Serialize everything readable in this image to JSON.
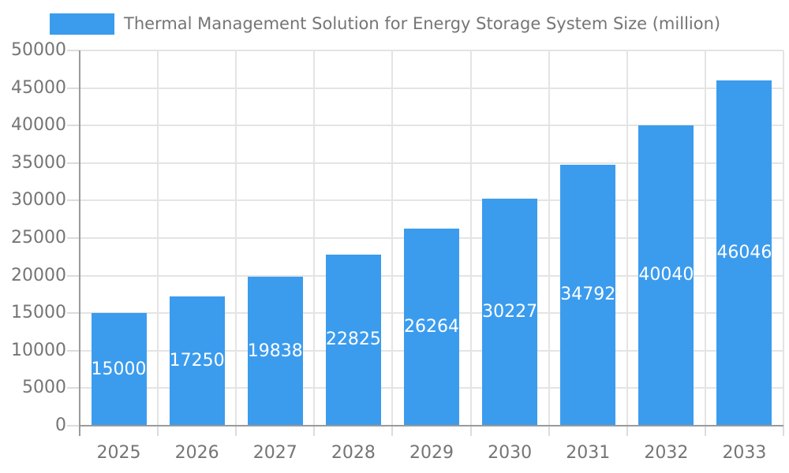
{
  "legend": {
    "label": "Thermal Management Solution for Energy Storage System Size (million)"
  },
  "colors": {
    "bar": "#3B9CEE",
    "grid": "#E4E4E4",
    "tick": "#DCDCDC",
    "spine": "#9A9A9A",
    "axis_label": "#757575",
    "value_label": "#FFFFFF",
    "background": "#FFFFFF"
  },
  "chart_data": {
    "type": "bar",
    "title": "Thermal Management Solution for Energy Storage System Size (million)",
    "categories": [
      "2025",
      "2026",
      "2027",
      "2028",
      "2029",
      "2030",
      "2031",
      "2032",
      "2033"
    ],
    "values": [
      15000,
      17250,
      19838,
      22825,
      26264,
      30227,
      34792,
      40040,
      46046
    ],
    "series": [
      {
        "name": "Thermal Management Solution for Energy Storage System Size (million)",
        "values": [
          15000,
          17250,
          19838,
          22825,
          26264,
          30227,
          34792,
          40040,
          46046
        ]
      }
    ],
    "xlabel": "",
    "ylabel": "",
    "ylim": [
      0,
      50000
    ],
    "yticks": [
      0,
      5000,
      10000,
      15000,
      20000,
      25000,
      30000,
      35000,
      40000,
      45000,
      50000
    ],
    "grid": true,
    "legend_position": "top-left",
    "value_labels": "inside-center-white"
  }
}
